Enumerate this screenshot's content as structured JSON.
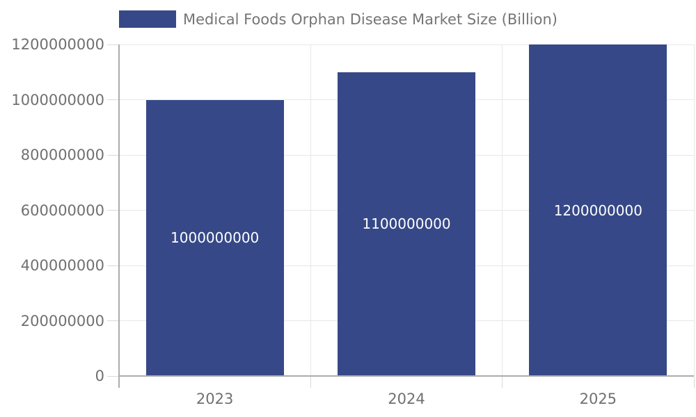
{
  "chart_data": {
    "type": "bar",
    "title": "",
    "legend_label": "Medical Foods Orphan Disease Market Size (Billion)",
    "legend_position": "top-left",
    "categories": [
      "2023",
      "2024",
      "2025"
    ],
    "values": [
      1000000000,
      1100000000,
      1200000000
    ],
    "bar_value_labels": [
      "1000000000",
      "1100000000",
      "1200000000"
    ],
    "xlabel": "",
    "ylabel": "",
    "ylim": [
      0,
      1200000000
    ],
    "yticks": [
      0,
      200000000,
      400000000,
      600000000,
      800000000,
      1000000000,
      1200000000
    ],
    "ytick_labels": [
      "0",
      "200000000",
      "400000000",
      "600000000",
      "800000000",
      "1000000000",
      "1200000000"
    ],
    "grid": "on",
    "colors": {
      "bar": "#364887",
      "bar_label_text": "#ffffff",
      "gridline": "#e7e7e7",
      "tick_mark": "#d9d9d9",
      "axis_line": "#acacac",
      "tick_label_text": "#707070",
      "legend_text": "#757575",
      "background": "#ffffff"
    }
  }
}
